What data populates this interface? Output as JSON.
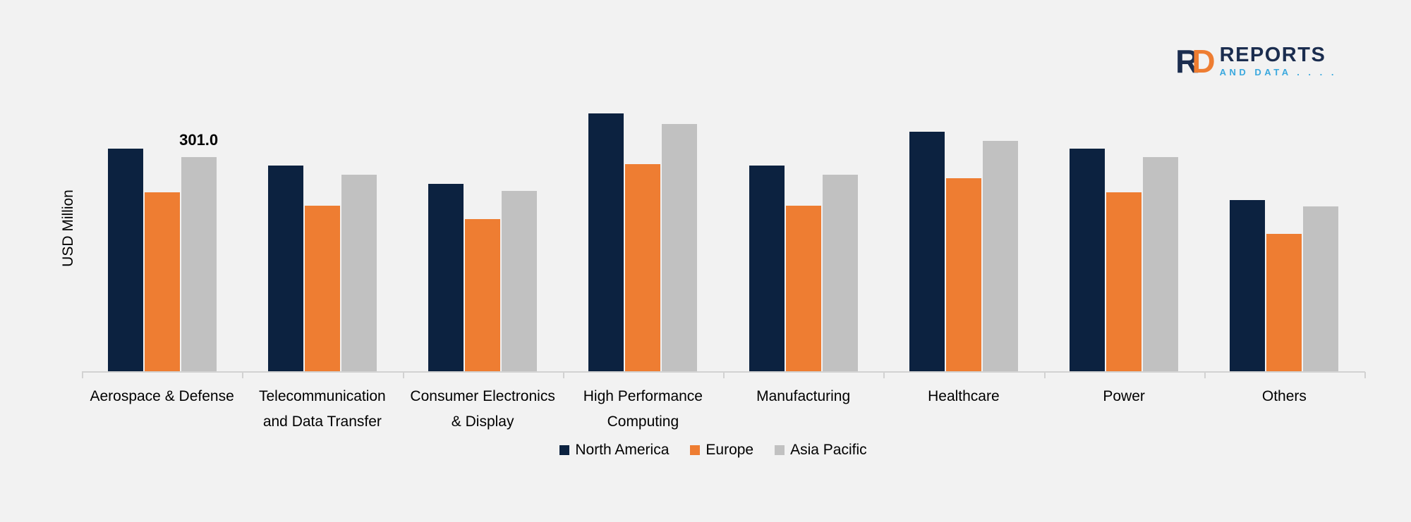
{
  "page": {
    "background": "#f2f2f2"
  },
  "logo": {
    "monogram_r": "R",
    "monogram_d": "D",
    "title": "REPORTS",
    "subtitle": "AND DATA . . . .",
    "navy": "#1b2d4f",
    "blue": "#3aa8de",
    "orange": "#ee7d32"
  },
  "chart_data": {
    "type": "bar",
    "title": "",
    "xlabel": "",
    "ylabel": "USD Million",
    "ylim": [
      0,
      400
    ],
    "grid": false,
    "legend_position": "bottom",
    "background_color": "#f2f2f2",
    "axis_color": "#d2d2d2",
    "text_color": "#000000",
    "categories": [
      "Aerospace & Defense",
      "Telecommunication and Data Transfer",
      "Consumer Electronics & Display",
      "High Performance Computing",
      "Manufacturing",
      "Healthcare",
      "Power",
      "Others"
    ],
    "category_label_lines": [
      [
        "Aerospace & Defense"
      ],
      [
        "Telecommunication",
        "and Data Transfer"
      ],
      [
        "Consumer Electronics",
        "& Display"
      ],
      [
        "High Performance",
        "Computing"
      ],
      [
        "Manufacturing"
      ],
      [
        "Healthcare"
      ],
      [
        "Power"
      ],
      [
        "Others"
      ]
    ],
    "series": [
      {
        "name": "North America",
        "color": "#0c2240",
        "values": [
          313,
          289,
          264,
          362,
          289,
          337,
          313,
          241
        ]
      },
      {
        "name": "Europe",
        "color": "#ee7d32",
        "values": [
          252,
          233,
          214,
          291,
          233,
          272,
          252,
          194
        ]
      },
      {
        "name": "Asia Pacific",
        "color": "#c1c1c1",
        "values": [
          301.0,
          277,
          254,
          348,
          277,
          324,
          301,
          232
        ]
      }
    ],
    "annotations": [
      {
        "series": "Asia Pacific",
        "category": "Aerospace & Defense",
        "text": "301.0"
      }
    ]
  }
}
